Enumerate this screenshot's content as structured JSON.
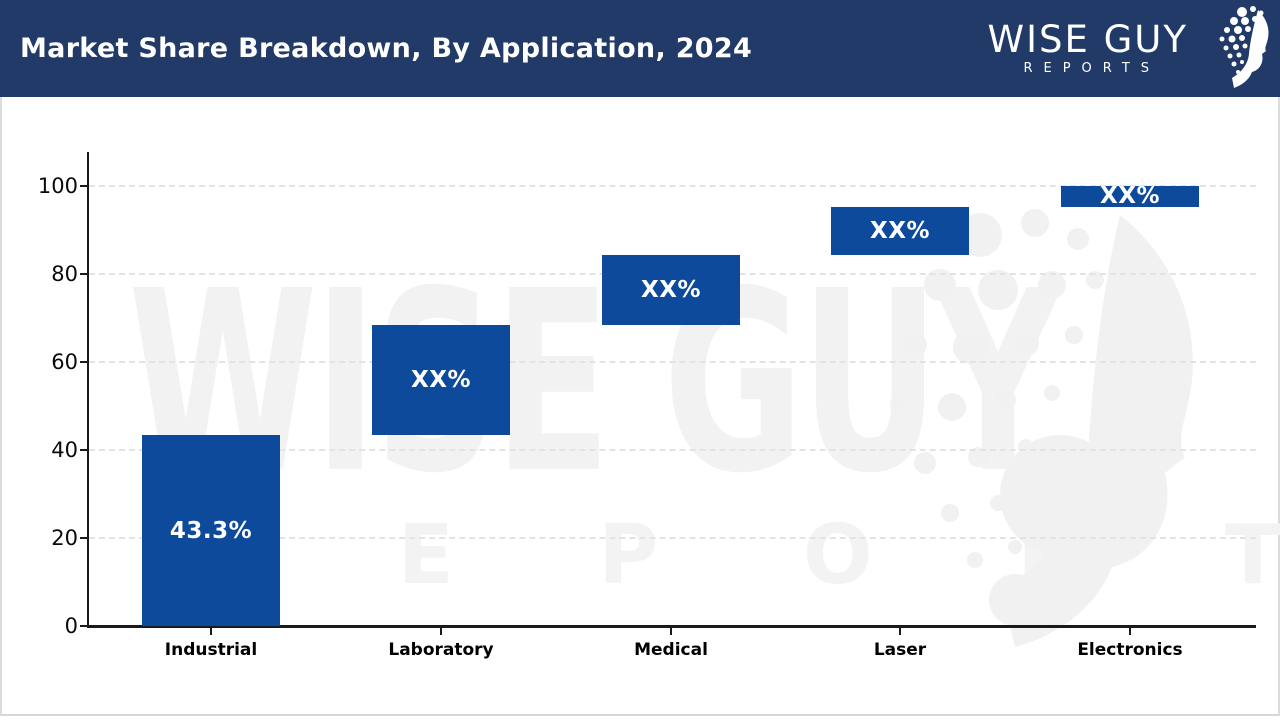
{
  "header": {
    "title": "Market Share Breakdown, By Application, 2024",
    "logo": {
      "line1": "WISE GUY",
      "line2": "REPORTS",
      "icon": "dotted-head-profile"
    }
  },
  "watermark": {
    "line1": "WISE GUY",
    "line2": "R E P O R T S"
  },
  "colors": {
    "header_bg": "#213a68",
    "bar": "#0d4a9c",
    "bar_label": "#ffffff",
    "gridline": "#e3e3e3",
    "axis": "#1a1a1a",
    "watermark": "#f2f2f2"
  },
  "chart_data": {
    "type": "bar",
    "subtype": "waterfall",
    "title": "Market Share Breakdown, By Application, 2024",
    "xlabel": "",
    "ylabel": "",
    "ylim": [
      0,
      100
    ],
    "yticks": [
      0,
      20,
      40,
      60,
      80,
      100
    ],
    "grid": "horizontal-dashed",
    "legend": "none",
    "categories": [
      "Industrial",
      "Laboratory",
      "Medical",
      "Laser",
      "Electronics"
    ],
    "segments": [
      {
        "category": "Industrial",
        "start": 0,
        "end": 43.3,
        "value": 43.3,
        "label": "43.3%"
      },
      {
        "category": "Laboratory",
        "start": 43.3,
        "end": 68.3,
        "value": 25.0,
        "label": "XX%"
      },
      {
        "category": "Medical",
        "start": 68.3,
        "end": 84.4,
        "value": 16.1,
        "label": "XX%"
      },
      {
        "category": "Laser",
        "start": 84.4,
        "end": 95.3,
        "value": 10.9,
        "label": "XX%"
      },
      {
        "category": "Electronics",
        "start": 95.3,
        "end": 100,
        "value": 4.7,
        "label": "XX%"
      }
    ]
  }
}
